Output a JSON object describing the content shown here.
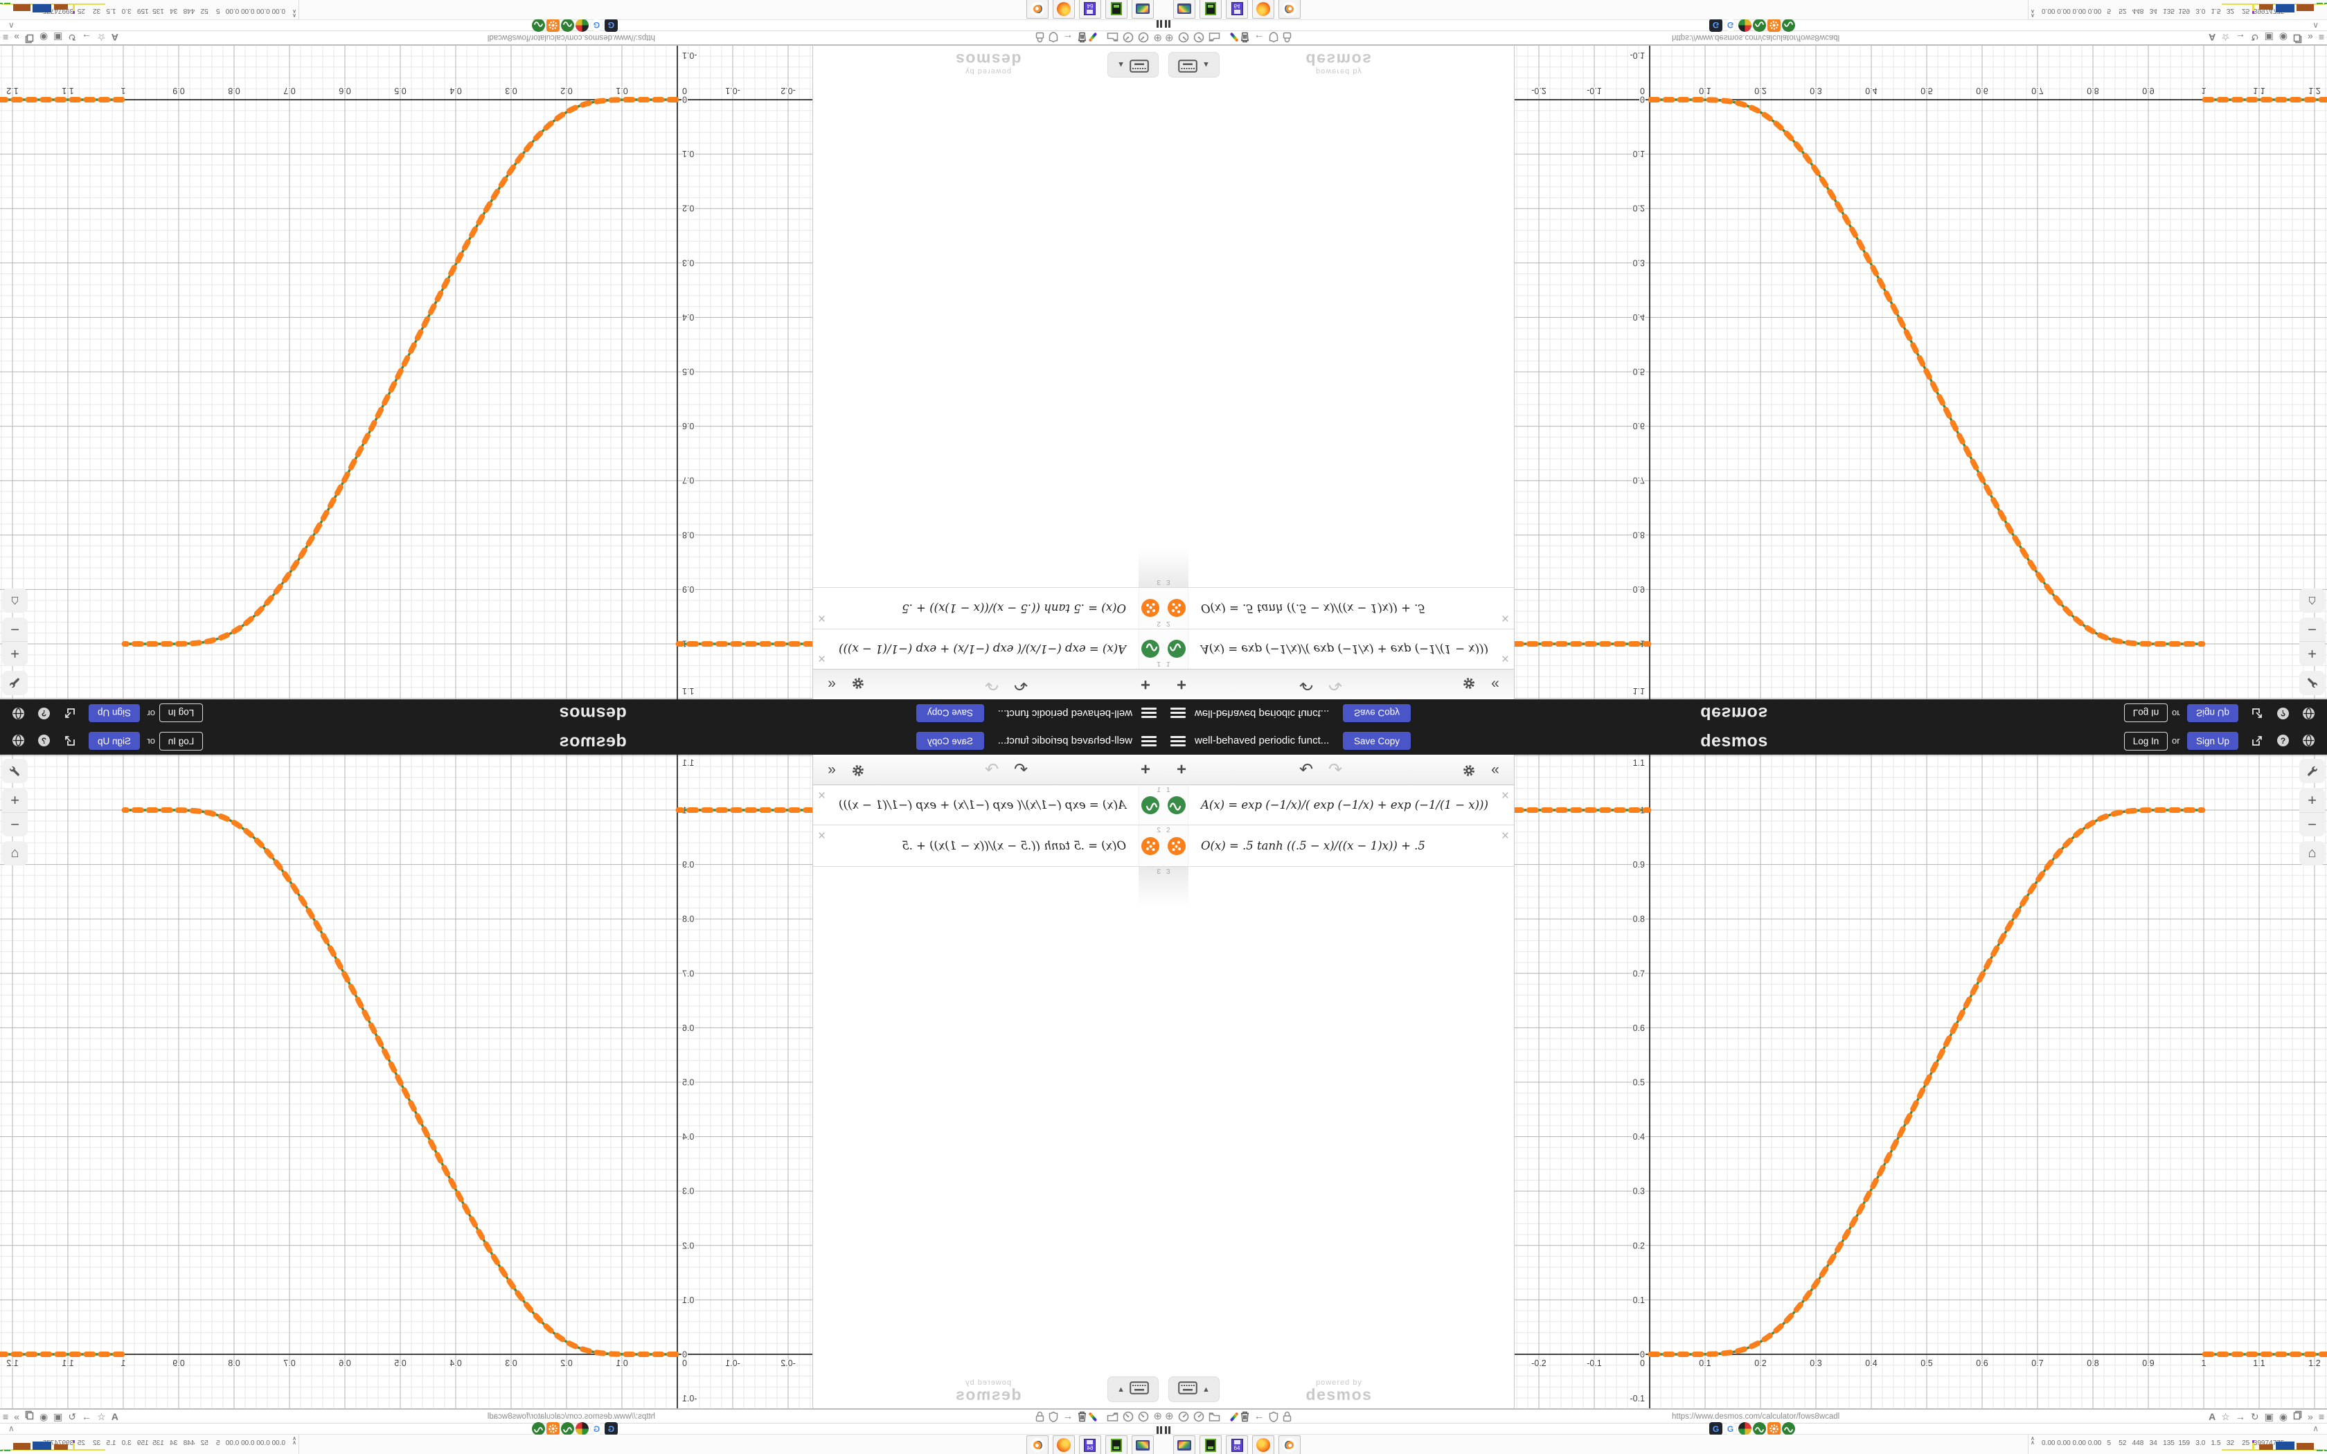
{
  "header": {
    "title": "well-behaved periodic funct...",
    "save_copy_label": "Save Copy",
    "logo_text": "desmos",
    "log_in_label": "Log In",
    "or_label": "or",
    "sign_up_label": "Sign Up",
    "accent_color": "#4a55c8",
    "background_color": "#1d1d1d",
    "icons": [
      "hamburger-menu-icon",
      "share-icon",
      "help-icon",
      "globe-icon"
    ]
  },
  "expression_panel": {
    "toolbar": {
      "add_label": "+",
      "undo_label": "↶",
      "redo_label": "↷",
      "collapse_label": "«",
      "icons": [
        "add-expression-icon",
        "undo-icon",
        "redo-icon",
        "settings-gear-icon",
        "collapse-panel-icon"
      ]
    },
    "rows": [
      {
        "index": "1",
        "equation": "A(x) = exp (−1/x)/( exp (−1/x) + exp (−1/(1 − x)))",
        "icon": "green-sine-curve-icon",
        "color": "#388c46",
        "delete_label": "×"
      },
      {
        "index": "2",
        "equation": "O(x) = .5 tanh ((.5 − x)/((x − 1)x)) + .5",
        "icon": "orange-points-icon",
        "color": "#fa7e19",
        "delete_label": "×"
      },
      {
        "index": "3",
        "equation": ""
      }
    ],
    "watermark_line1": "powered by",
    "watermark_line2": "desmos",
    "keyboard_button_icons": [
      "keyboard-icon",
      "up-triangle-icon"
    ],
    "keyboard_triangle": "▲"
  },
  "graph_controls": {
    "zoom_in_label": "+",
    "zoom_out_label": "−",
    "home_label": "⌂",
    "icons": [
      "wrench-icon",
      "zoom-in-icon",
      "zoom-out-icon",
      "default-zoom-home-icon"
    ]
  },
  "chart_data": {
    "type": "line",
    "title": "",
    "xlabel": "",
    "ylabel": "",
    "x_range": [
      -0.244,
      1.2225
    ],
    "y_range": [
      -0.047,
      1.102
    ],
    "x_tick_step": 0.1,
    "y_tick_step": 0.1,
    "x_tick_labels": [
      "-0.2",
      "-0.1",
      "0",
      "0.1",
      "0.2",
      "0.3",
      "0.4",
      "0.5",
      "0.6",
      "0.7",
      "0.8",
      "0.9",
      "1",
      "1.1",
      "1.2"
    ],
    "y_tick_labels": [
      "1.1",
      "1",
      "0.9",
      "0.8",
      "0.7",
      "0.6",
      "0.5",
      "0.4",
      "0.3",
      "0.2",
      "0.1",
      "0",
      "-0.1"
    ],
    "grid": true,
    "minor_per_major": 5,
    "series": [
      {
        "name": "A(x)",
        "formula": "exp(-1/x)/(exp(-1/x)+exp(-1/(1-x)))",
        "color": "#388c46",
        "style": "solid",
        "description": "0 for x in (0,0.1], rises sigmoidally from (0,0) to (1,1), equals 1 for x<0 and 0 for x>1"
      },
      {
        "name": "O(x)",
        "formula": ".5 tanh((.5-x)/((x-1)x)) + .5",
        "color": "#fa7e19",
        "style": "dashed-dots",
        "description": "same sigmoid shape overlapping A(x); drawn as orange dashes over the green curve"
      }
    ]
  },
  "browser_toolbar": {
    "url": "https://www.desmos.com/calculator/fows8wcadl",
    "left_icons": [
      "globe-plus-icon",
      "gauge-icon",
      "gauge-icon",
      "folder-icon",
      "color-pencil-icon",
      "trash-icon",
      "back-arrow-icon",
      "shield-icon",
      "lock-icon"
    ],
    "back_arrow": "←",
    "globe_plus": "⊕",
    "right_icons": [
      "translate-icon",
      "bookmark-star-icon",
      "downloads-icon",
      "reload-icon",
      "container-icon",
      "dark-globe-icon",
      "copy-icon",
      "overflow-chevrons-icon",
      "menu-icon"
    ],
    "translate_glyph": "A",
    "star_glyph": "☆",
    "down_glyph": "→",
    "reload_glyph": "↻",
    "container_glyph": "▣",
    "darkglobe_glyph": "◉",
    "chevrons_glyph": "»",
    "menu_glyph": "≡"
  },
  "favicons_bar": {
    "icons": [
      "dark-g-favicon",
      "google-favicon",
      "color-wheel-favicon",
      "desmos-green-favicon",
      "desmos-orange-gear-favicon",
      "desmos-green-favicon"
    ],
    "dark_g_letter": "G",
    "google_letter": "G",
    "collapse_chevron": "∧"
  },
  "taskbar": {
    "app_icons": [
      "screenshot-viewer-app-icon",
      "green-capture-app-icon",
      "floppy-64-app-icon",
      "firefox-app-icon",
      "blender-app-icon"
    ],
    "stats_text": "0.00 0.00 0.00 0.00   5    52   448   34   135  159   3.0   1.5   32    25  39974775",
    "chevron_glyph": "∧\n∧"
  }
}
